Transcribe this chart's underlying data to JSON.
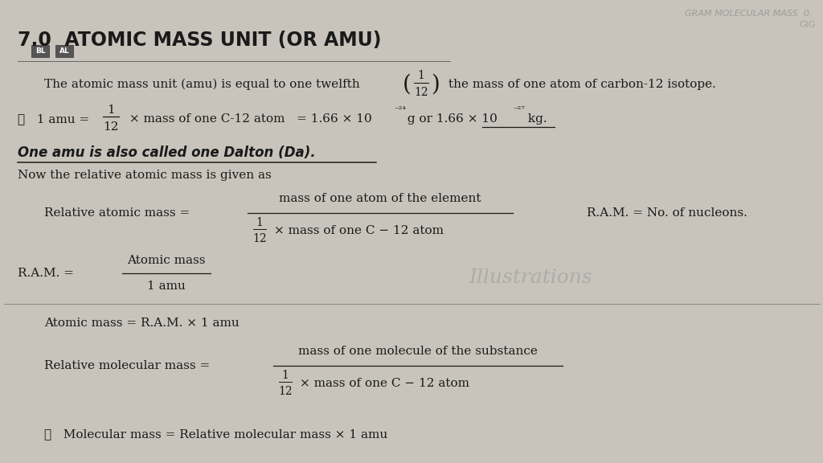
{
  "bg_color": "#c8c4bc",
  "title": "7.0  ATOMIC MASS UNIT (OR AMU)",
  "watermark_text": "GRAM MOLECULAR MASS  0.",
  "watermark2": "GIG",
  "badge1": "BL",
  "badge2": "AL",
  "badge_color": "#555555",
  "line1_pre": "The atomic mass unit (amu) is equal to one twelfth",
  "line1_post": "the mass of one atom of carbon-12 isotope.",
  "line2_pre": "∴   1 amu = ",
  "line2_mid": " × mass of one C-12 atom   = 1.66 × 10",
  "line2_g": " g or 1.66 × 10",
  "line2_end": " kg.",
  "line3": "One amu is also called one Dalton (Da).",
  "line4": "Now the relative atomic mass is given as",
  "line5_pre": "Relative atomic mass = ",
  "line5_num": "mass of one atom of the element",
  "line5_den_end": "× mass of one C − 12 atom",
  "line5_right": "R.A.M. = No. of nucleons.",
  "line6_pre": "R.A.M. = ",
  "line6_num": "Atomic mass",
  "line6_den": "1 amu",
  "watermark_mid": "Illustrations",
  "line7": "Atomic mass = R.A.M. × 1 amu",
  "line8_pre": "Relative molecular mass = ",
  "line8_num": "mass of one molecule of the substance",
  "line8_den_end": "× mass of one C − 12 atom",
  "line9": "∴   Molecular mass = Relative molecular mass × 1 amu",
  "text_color": "#1a1a1a",
  "serif_font": "DejaVu Serif",
  "sans_font": "DejaVu Sans"
}
